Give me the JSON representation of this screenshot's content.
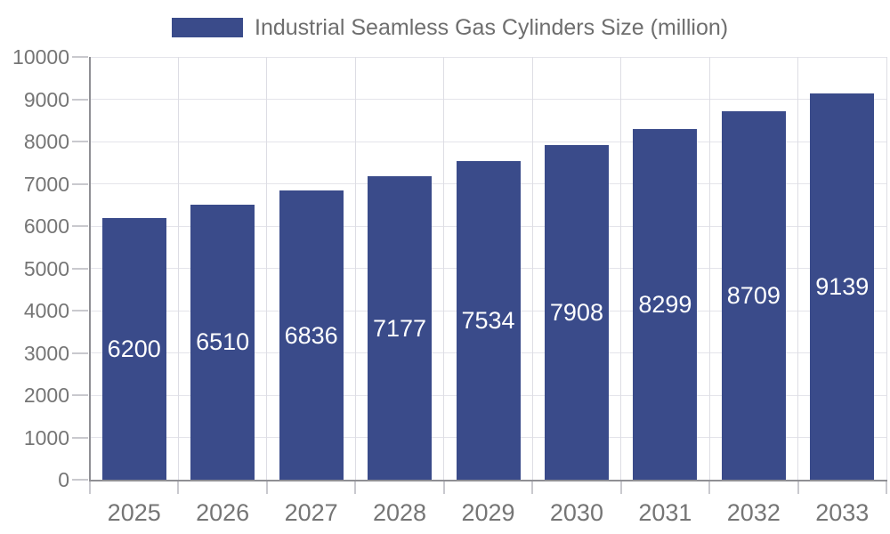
{
  "chart_data": {
    "type": "bar",
    "title": "Industrial Seamless Gas Cylinders Size (million)",
    "legend": [
      "Industrial Seamless Gas Cylinders Size (million)"
    ],
    "legend_position": "top",
    "categories": [
      "2025",
      "2026",
      "2027",
      "2028",
      "2029",
      "2030",
      "2031",
      "2032",
      "2033"
    ],
    "values": [
      6200,
      6510,
      6836,
      7177,
      7534,
      7908,
      8299,
      8709,
      9139
    ],
    "xlabel": "",
    "ylabel": "",
    "ylim": [
      0,
      10000
    ],
    "yticks": [
      0,
      1000,
      2000,
      3000,
      4000,
      5000,
      6000,
      7000,
      8000,
      9000,
      10000
    ],
    "grid": true,
    "value_label_position": "inside-middle",
    "colors": {
      "bar": "#3A4B8A",
      "value_label": "#FFFFFF",
      "axis_text": "#757575",
      "legend_text": "#6E6E6E",
      "axis_line": "#8F8F94",
      "grid_horizontal": "#E4E4EA",
      "grid_vertical": "#DDDDE4",
      "tick": "#C9C9CE"
    }
  }
}
